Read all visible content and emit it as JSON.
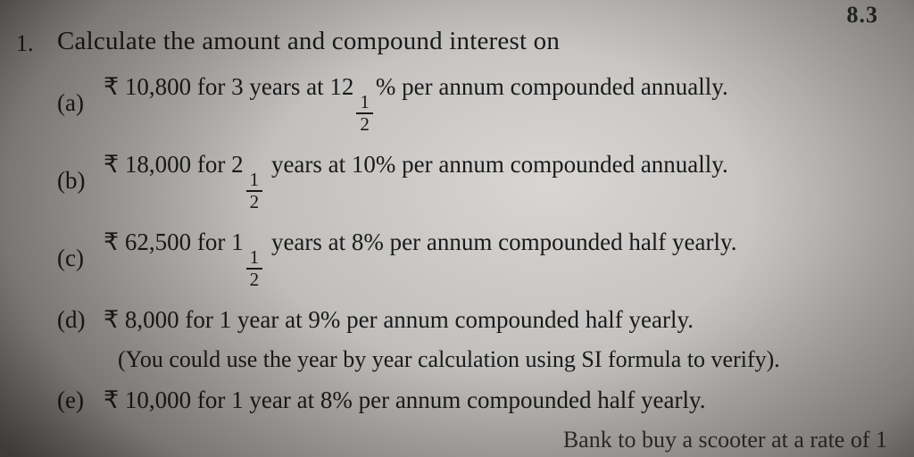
{
  "top_fragment": "8.3",
  "question_number": "1.",
  "stem": "Calculate the amount and compound interest on",
  "options": {
    "a": {
      "label": "(a)",
      "pre": "₹ 10,800 for 3 years at ",
      "whole": "12",
      "num": "1",
      "den": "2",
      "post": "% per annum compounded annually."
    },
    "b": {
      "label": "(b)",
      "pre": "₹ 18,000 for ",
      "whole": "2",
      "num": "1",
      "den": "2",
      "post": " years at 10% per annum compounded annually."
    },
    "c": {
      "label": "(c)",
      "pre": "₹ 62,500 for ",
      "whole": "1",
      "num": "1",
      "den": "2",
      "post": " years at 8% per annum compounded half yearly."
    },
    "d": {
      "label": "(d)",
      "text": "₹ 8,000 for 1 year at 9% per annum compounded half yearly."
    },
    "note": "(You could use the year by year calculation using SI formula to verify).",
    "e": {
      "label": "(e)",
      "text": "₹ 10,000 for 1 year at 8% per annum compounded half yearly."
    }
  },
  "bottom_left_fragment": "",
  "bottom_right_fragment": "Bank to buy a scooter at a rate of 1",
  "colors": {
    "text": "#1a1a1a"
  }
}
